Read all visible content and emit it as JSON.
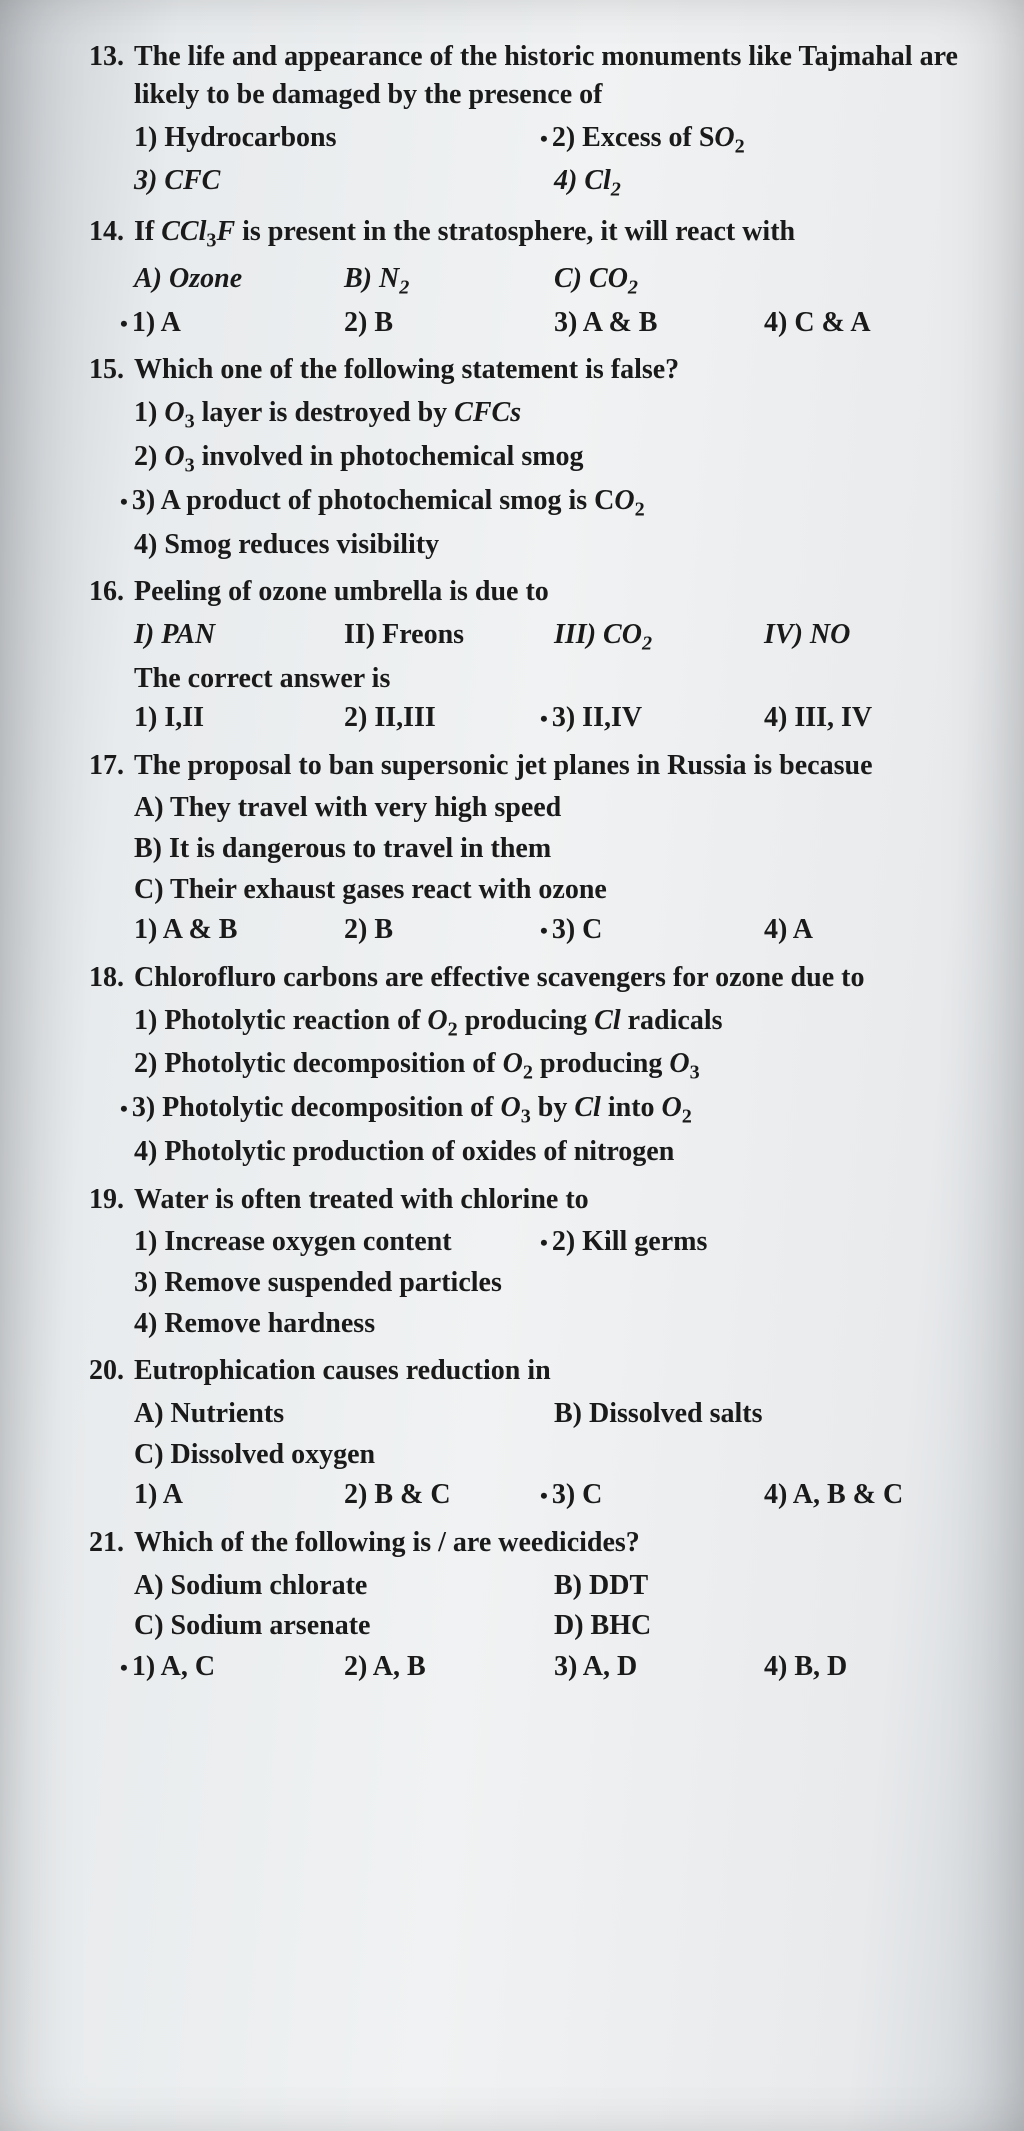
{
  "questions": [
    {
      "num": "13.",
      "stem": "The life and appearance of the historic monuments like Tajmahal are likely to be damaged by the presence of",
      "rows": [
        [
          {
            "t": "1) Hydrocarbons"
          },
          {
            "t": "2) Excess of SO₂",
            "marked": true
          }
        ],
        [
          {
            "t": "3) CFC",
            "ital": true
          },
          {
            "t": "4) Cl₂",
            "ital": true
          }
        ]
      ],
      "layout": "two"
    },
    {
      "num": "14.",
      "stem": "If CCl₃F is present in the stratosphere, it will react with",
      "rows": [
        [
          {
            "t": "A) Ozone",
            "ital": true
          },
          {
            "t": "B) N₂",
            "ital": true
          },
          {
            "t": "C) CO₂",
            "ital": true
          },
          {
            "t": ""
          }
        ],
        [
          {
            "t": "1) A",
            "marked": true
          },
          {
            "t": "2) B"
          },
          {
            "t": "3) A & B"
          },
          {
            "t": "4) C & A"
          }
        ]
      ],
      "layout": "four"
    },
    {
      "num": "15.",
      "stem": "Which one of the following statement is false?",
      "rows": [
        [
          {
            "t": "1) O₃ layer is destroyed by CFCs",
            "full": true
          }
        ],
        [
          {
            "t": "2) O₃ involved in photochemical smog",
            "full": true
          }
        ],
        [
          {
            "t": "3) A product of photochemical smog is CO₂",
            "full": true,
            "marked": true
          }
        ],
        [
          {
            "t": "4) Smog reduces visibility",
            "full": true
          }
        ]
      ],
      "layout": "two"
    },
    {
      "num": "16.",
      "stem": "Peeling of ozone umbrella is due to",
      "rows": [
        [
          {
            "t": "I) PAN",
            "ital": true
          },
          {
            "t": "II) Freons"
          },
          {
            "t": "III) CO₂",
            "ital": true
          },
          {
            "t": "IV) NO",
            "ital": true
          }
        ]
      ],
      "layout": "four",
      "lead": "The correct answer is",
      "rows2": [
        [
          {
            "t": "1) I,II"
          },
          {
            "t": "2) II,III"
          },
          {
            "t": "3) II,IV",
            "marked": true
          },
          {
            "t": "4) III, IV"
          }
        ]
      ]
    },
    {
      "num": "17.",
      "stem": "The proposal to ban supersonic jet planes in Russia is becasue",
      "rows": [
        [
          {
            "t": "A) They travel with very high speed",
            "full": true
          }
        ],
        [
          {
            "t": "B) It is dangerous to travel in them",
            "full": true
          }
        ],
        [
          {
            "t": "C) Their exhaust gases react with ozone",
            "full": true
          }
        ],
        [
          {
            "t": "1) A & B"
          },
          {
            "t": "2) B"
          },
          {
            "t": "3) C",
            "marked": true
          },
          {
            "t": "4) A"
          }
        ]
      ],
      "layout": "four"
    },
    {
      "num": "18.",
      "stem": "Chlorofluro carbons are effective scavengers for ozone due to",
      "rows": [
        [
          {
            "t": "1) Photolytic reaction of O₂ producing Cl radicals",
            "full": true
          }
        ],
        [
          {
            "t": "2) Photolytic decomposition of O₂ producing O₃",
            "full": true
          }
        ],
        [
          {
            "t": "3) Photolytic decomposition of O₃ by Cl into O₂",
            "full": true,
            "marked": true
          }
        ],
        [
          {
            "t": "4) Photolytic production of oxides of nitrogen",
            "full": true
          }
        ]
      ],
      "layout": "two"
    },
    {
      "num": "19.",
      "stem": "Water is often treated with chlorine to",
      "rows": [
        [
          {
            "t": "1) Increase oxygen content"
          },
          {
            "t": "2) Kill germs",
            "marked": true
          }
        ],
        [
          {
            "t": "3) Remove suspended particles",
            "full": true
          }
        ],
        [
          {
            "t": "4) Remove hardness",
            "full": true
          }
        ]
      ],
      "layout": "two"
    },
    {
      "num": "20.",
      "stem": "Eutrophication causes reduction in",
      "rows": [
        [
          {
            "t": "A) Nutrients"
          },
          {
            "t": "B) Dissolved salts"
          }
        ],
        [
          {
            "t": "C) Dissolved oxygen",
            "full": true
          }
        ],
        [
          {
            "t": "1) A"
          },
          {
            "t": "2) B & C"
          },
          {
            "t": "3) C",
            "marked": true
          },
          {
            "t": "4) A, B & C"
          }
        ]
      ],
      "layout": "four",
      "upperLayout": "two"
    },
    {
      "num": "21.",
      "stem": "Which of the following is / are weedicides?",
      "rows": [
        [
          {
            "t": "A) Sodium chlorate"
          },
          {
            "t": "B) DDT"
          }
        ],
        [
          {
            "t": "C) Sodium arsenate"
          },
          {
            "t": "D) BHC"
          }
        ],
        [
          {
            "t": "1) A, C",
            "marked": true
          },
          {
            "t": "2) A, B"
          },
          {
            "t": "3) A, D"
          },
          {
            "t": "4) B, D"
          }
        ]
      ],
      "layout": "four",
      "upperLayout": "two"
    }
  ]
}
